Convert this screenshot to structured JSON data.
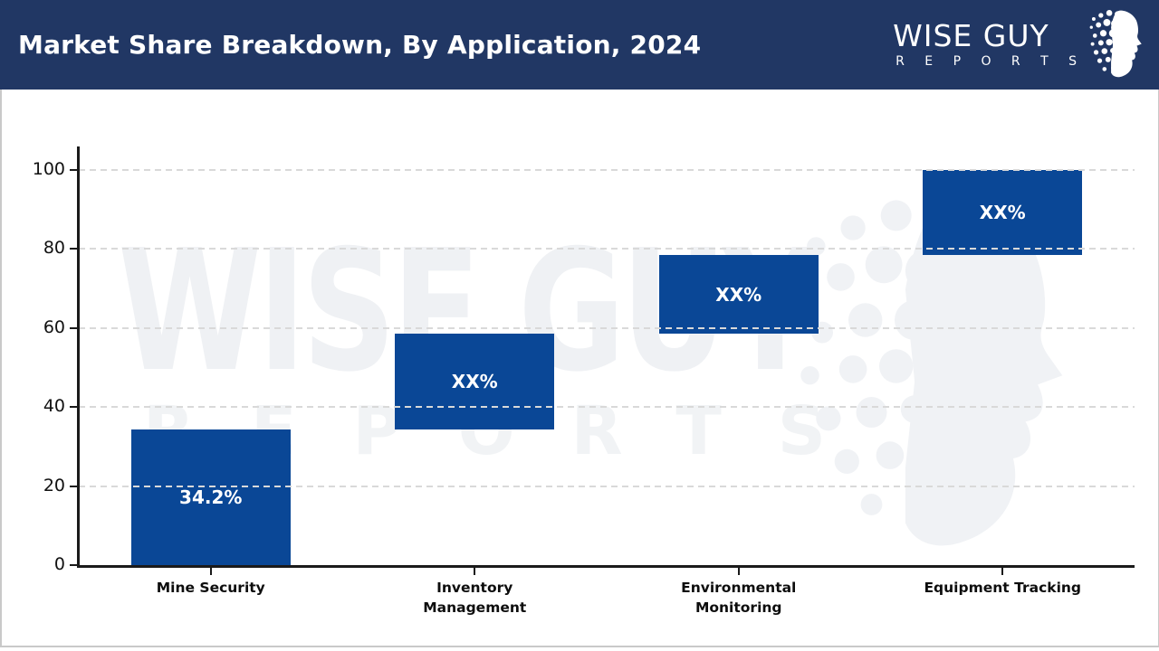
{
  "header": {
    "title": "Market Share Breakdown, By Application, 2024",
    "logo": {
      "wordmark": "WISE GUY",
      "subtext": "R E P O R T S"
    }
  },
  "watermark": {
    "wordmark": "WISE GUY",
    "subtext": "REPORTS"
  },
  "chart_data": {
    "type": "bar",
    "subtype": "waterfall",
    "title": "Market Share Breakdown, By Application, 2024",
    "categories": [
      "Mine Security",
      "Inventory\nManagement",
      "Environmental\nMonitoring",
      "Equipment Tracking"
    ],
    "segments": [
      {
        "category": "Mine Security",
        "start": 0,
        "end": 34.2,
        "label": "34.2%"
      },
      {
        "category": "Inventory Management",
        "start": 34.2,
        "end": 58.6,
        "label": "XX%"
      },
      {
        "category": "Environmental Monitoring",
        "start": 58.6,
        "end": 78.3,
        "label": "XX%"
      },
      {
        "category": "Equipment Tracking",
        "start": 78.3,
        "end": 100,
        "label": "XX%"
      }
    ],
    "xlabel": "",
    "ylabel": "",
    "ylim": [
      0,
      100
    ],
    "yticks": [
      0,
      20,
      40,
      60,
      80,
      100
    ],
    "grid": "horizontal-dashed",
    "legend": "none",
    "bar_color": "#0a4796",
    "bar_label_color": "#ffffff"
  },
  "colors": {
    "header_bg": "#213764",
    "bar": "#0a4796",
    "grid": "#d9d9d9",
    "axis": "#1a1a1a",
    "watermark": "#f0f2f5",
    "frame_border": "#c9c9c9",
    "text": "#111111"
  }
}
